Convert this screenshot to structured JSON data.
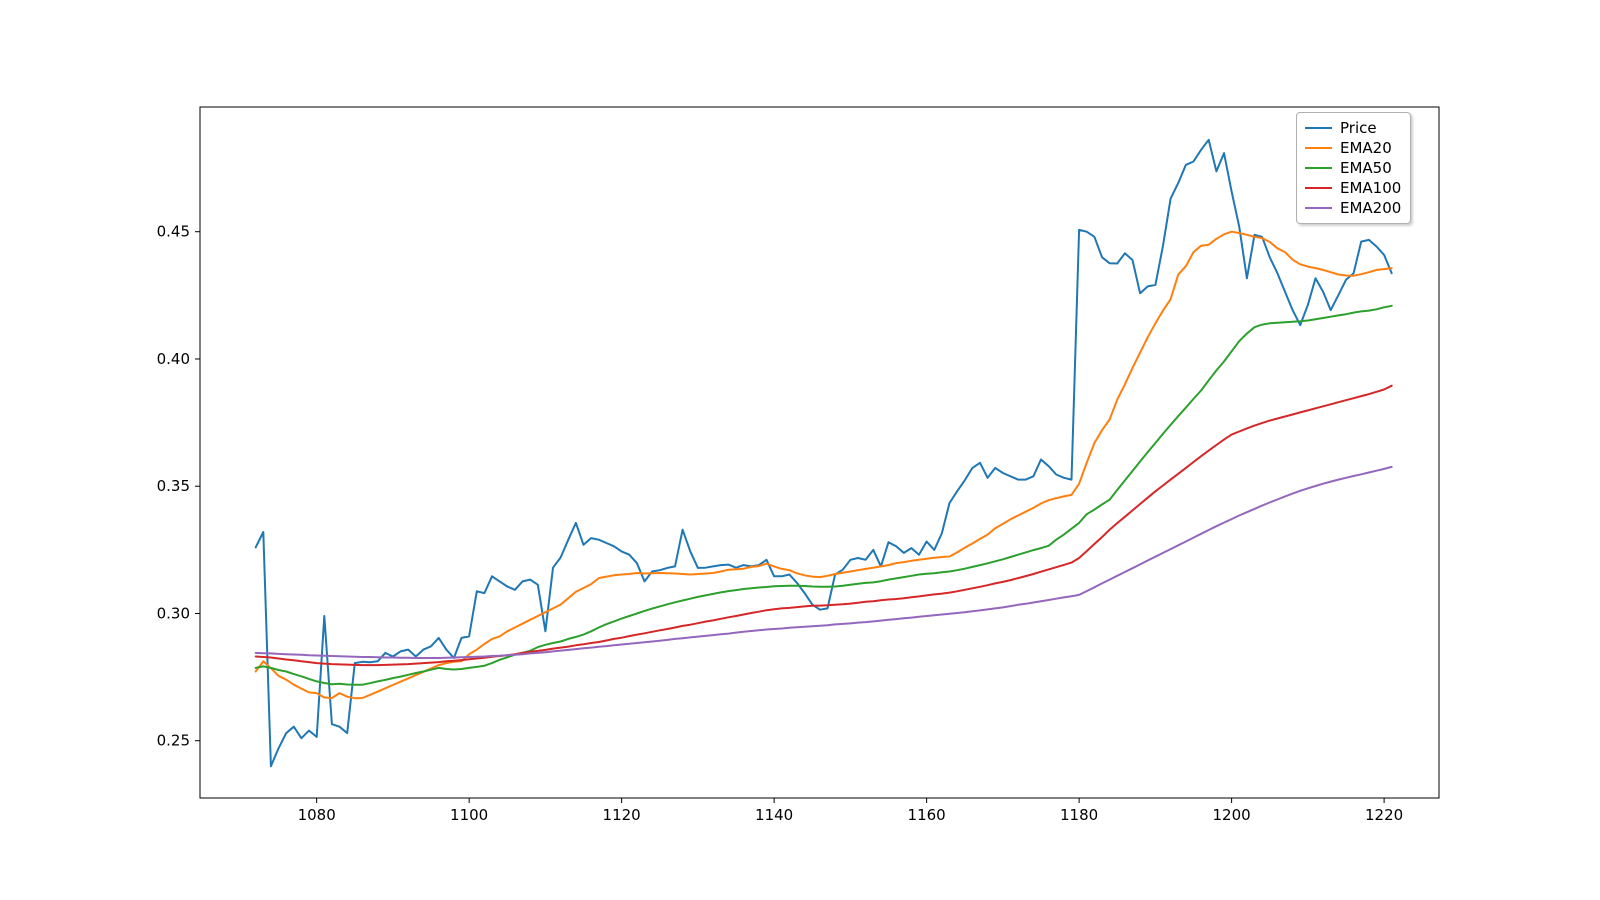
{
  "figure": {
    "background": "#ffffff",
    "frame_color": "#000000"
  },
  "chart_data": {
    "type": "line",
    "title": "",
    "xlabel": "",
    "ylabel": "",
    "grid": false,
    "legend_position": "upper right",
    "xlim": [
      1064.7,
      1227.2
    ],
    "ylim": [
      0.2275,
      0.499
    ],
    "x_ticks": [
      1080,
      1100,
      1120,
      1140,
      1160,
      1180,
      1200,
      1220
    ],
    "y_ticks": [
      0.25,
      0.3,
      0.35,
      0.4,
      0.45
    ],
    "y_tick_labels": [
      "0.25",
      "0.30",
      "0.35",
      "0.40",
      "0.45"
    ],
    "x_start": 1072,
    "x_step": 1,
    "series": [
      {
        "name": "Price",
        "color": "#1f77b4",
        "values": [
          0.326,
          0.332,
          0.24,
          0.247,
          0.253,
          0.2555,
          0.251,
          0.254,
          0.2515,
          0.299,
          0.2565,
          0.2555,
          0.253,
          0.2805,
          0.281,
          0.2808,
          0.2812,
          0.2845,
          0.2831,
          0.2851,
          0.2858,
          0.2831,
          0.2858,
          0.2871,
          0.2904,
          0.2858,
          0.2825,
          0.2904,
          0.291,
          0.3087,
          0.308,
          0.3146,
          0.3126,
          0.3106,
          0.3093,
          0.3126,
          0.3133,
          0.3113,
          0.293,
          0.318,
          0.322,
          0.329,
          0.3356,
          0.327,
          0.3296,
          0.329,
          0.3277,
          0.3264,
          0.3244,
          0.3231,
          0.3198,
          0.3126,
          0.3165,
          0.317,
          0.3179,
          0.3185,
          0.3329,
          0.3244,
          0.3179,
          0.318,
          0.3185,
          0.319,
          0.3192,
          0.318,
          0.319,
          0.3185,
          0.319,
          0.3211,
          0.3146,
          0.3146,
          0.3153,
          0.312,
          0.308,
          0.3035,
          0.3015,
          0.302,
          0.3153,
          0.3172,
          0.3211,
          0.3218,
          0.3211,
          0.325,
          0.3185,
          0.328,
          0.3264,
          0.3238,
          0.3257,
          0.3231,
          0.3283,
          0.325,
          0.3316,
          0.3434,
          0.348,
          0.3523,
          0.3572,
          0.3592,
          0.3533,
          0.3572,
          0.3552,
          0.3539,
          0.3526,
          0.3526,
          0.3539,
          0.3605,
          0.3579,
          0.3546,
          0.3533,
          0.3526,
          0.4507,
          0.45,
          0.448,
          0.44,
          0.4376,
          0.4375,
          0.4415,
          0.4389,
          0.4258,
          0.4285,
          0.4291,
          0.4445,
          0.463,
          0.4691,
          0.4763,
          0.4776,
          0.4822,
          0.4861,
          0.4737,
          0.4809,
          0.4658,
          0.452,
          0.4317,
          0.4488,
          0.448,
          0.44,
          0.4337,
          0.4264,
          0.4192,
          0.4133,
          0.4213,
          0.4317,
          0.4264,
          0.4192,
          0.4251,
          0.4311,
          0.4337,
          0.4461,
          0.4468,
          0.4442,
          0.4409,
          0.4337
        ]
      },
      {
        "name": "EMA20",
        "color": "#ff7f0e",
        "values": [
          0.2772,
          0.2812,
          0.2785,
          0.2755,
          0.274,
          0.272,
          0.2705,
          0.269,
          0.2687,
          0.267,
          0.2668,
          0.2687,
          0.2673,
          0.2667,
          0.2668,
          0.268,
          0.2693,
          0.2706,
          0.2719,
          0.2732,
          0.2745,
          0.2758,
          0.2771,
          0.2784,
          0.2797,
          0.2805,
          0.281,
          0.2812,
          0.284,
          0.2858,
          0.288,
          0.29,
          0.291,
          0.293,
          0.2945,
          0.296,
          0.2975,
          0.299,
          0.3005,
          0.302,
          0.3035,
          0.306,
          0.3085,
          0.31,
          0.3115,
          0.3139,
          0.3145,
          0.315,
          0.3153,
          0.3155,
          0.3159,
          0.3157,
          0.3158,
          0.3159,
          0.3158,
          0.3157,
          0.3155,
          0.3153,
          0.3155,
          0.3157,
          0.3159,
          0.3165,
          0.3172,
          0.3174,
          0.3176,
          0.3183,
          0.3186,
          0.3196,
          0.3185,
          0.3175,
          0.317,
          0.3158,
          0.315,
          0.3145,
          0.3143,
          0.3148,
          0.3155,
          0.316,
          0.3165,
          0.317,
          0.3175,
          0.318,
          0.3185,
          0.319,
          0.3198,
          0.3202,
          0.3207,
          0.3211,
          0.3215,
          0.3219,
          0.3222,
          0.3224,
          0.324,
          0.3258,
          0.3275,
          0.3293,
          0.331,
          0.3335,
          0.3352,
          0.337,
          0.3385,
          0.34,
          0.3415,
          0.3432,
          0.3445,
          0.3453,
          0.346,
          0.3466,
          0.351,
          0.3592,
          0.367,
          0.372,
          0.3762,
          0.384,
          0.39,
          0.3965,
          0.4025,
          0.4085,
          0.414,
          0.419,
          0.4235,
          0.4331,
          0.4365,
          0.442,
          0.4445,
          0.4449,
          0.4472,
          0.449,
          0.45,
          0.4495,
          0.4488,
          0.448,
          0.4475,
          0.446,
          0.4435,
          0.442,
          0.439,
          0.4372,
          0.4363,
          0.4357,
          0.435,
          0.4341,
          0.4332,
          0.4328,
          0.4327,
          0.4333,
          0.4341,
          0.435,
          0.4353,
          0.4357
        ]
      },
      {
        "name": "EMA50",
        "color": "#2ca02c",
        "values": [
          0.2786,
          0.2792,
          0.2786,
          0.2778,
          0.2772,
          0.2762,
          0.2753,
          0.2743,
          0.2733,
          0.2727,
          0.2722,
          0.2724,
          0.2721,
          0.272,
          0.272,
          0.2726,
          0.2733,
          0.2739,
          0.2746,
          0.2752,
          0.2759,
          0.2766,
          0.2772,
          0.2779,
          0.2786,
          0.2782,
          0.278,
          0.2782,
          0.2786,
          0.279,
          0.2795,
          0.2805,
          0.2818,
          0.2828,
          0.2838,
          0.2845,
          0.2853,
          0.2868,
          0.2877,
          0.2884,
          0.289,
          0.29,
          0.2908,
          0.2917,
          0.293,
          0.2945,
          0.2958,
          0.2969,
          0.298,
          0.299,
          0.3,
          0.301,
          0.3019,
          0.3028,
          0.3036,
          0.3044,
          0.3051,
          0.3058,
          0.3065,
          0.3071,
          0.3077,
          0.3083,
          0.3088,
          0.3092,
          0.3096,
          0.3099,
          0.3102,
          0.3104,
          0.3107,
          0.3108,
          0.3109,
          0.3109,
          0.3108,
          0.3106,
          0.3105,
          0.3105,
          0.3106,
          0.3109,
          0.3113,
          0.3117,
          0.312,
          0.3122,
          0.3127,
          0.3133,
          0.3138,
          0.3143,
          0.3148,
          0.3153,
          0.3156,
          0.3158,
          0.3162,
          0.3165,
          0.317,
          0.3176,
          0.3183,
          0.319,
          0.3197,
          0.3205,
          0.3213,
          0.3222,
          0.3231,
          0.324,
          0.3249,
          0.3257,
          0.3266,
          0.329,
          0.331,
          0.3333,
          0.3356,
          0.339,
          0.3408,
          0.3428,
          0.3447,
          0.3485,
          0.3523,
          0.356,
          0.3597,
          0.3634,
          0.367,
          0.3706,
          0.3741,
          0.3775,
          0.3809,
          0.3843,
          0.3876,
          0.3916,
          0.3955,
          0.399,
          0.403,
          0.407,
          0.41,
          0.4125,
          0.4135,
          0.414,
          0.4142,
          0.4144,
          0.4146,
          0.4148,
          0.4151,
          0.4156,
          0.4161,
          0.4166,
          0.4171,
          0.4176,
          0.4182,
          0.4187,
          0.419,
          0.4195,
          0.4203,
          0.4209
        ]
      },
      {
        "name": "EMA100",
        "color": "#d62728",
        "values": [
          0.2831,
          0.2829,
          0.2827,
          0.2823,
          0.2819,
          0.2816,
          0.2812,
          0.2809,
          0.2805,
          0.2803,
          0.2801,
          0.28,
          0.2799,
          0.2798,
          0.2797,
          0.2797,
          0.2797,
          0.2798,
          0.2799,
          0.28,
          0.2801,
          0.2803,
          0.2805,
          0.2807,
          0.2809,
          0.2812,
          0.2814,
          0.2817,
          0.282,
          0.2823,
          0.2826,
          0.283,
          0.2833,
          0.2836,
          0.284,
          0.2845,
          0.2849,
          0.2853,
          0.2857,
          0.2862,
          0.2866,
          0.287,
          0.2875,
          0.2879,
          0.2884,
          0.2888,
          0.2894,
          0.29,
          0.2905,
          0.2911,
          0.2917,
          0.2922,
          0.2928,
          0.2934,
          0.2939,
          0.2945,
          0.2951,
          0.2956,
          0.2962,
          0.2968,
          0.2973,
          0.2979,
          0.2985,
          0.299,
          0.2996,
          0.3002,
          0.3007,
          0.3013,
          0.3017,
          0.302,
          0.3022,
          0.3025,
          0.3028,
          0.303,
          0.3031,
          0.3032,
          0.3034,
          0.3036,
          0.3039,
          0.3042,
          0.3046,
          0.3048,
          0.3052,
          0.3055,
          0.3057,
          0.306,
          0.3064,
          0.3067,
          0.3071,
          0.3075,
          0.3078,
          0.3082,
          0.3087,
          0.3093,
          0.3099,
          0.3105,
          0.3111,
          0.3118,
          0.3124,
          0.3131,
          0.3139,
          0.3147,
          0.3155,
          0.3164,
          0.3173,
          0.3182,
          0.3191,
          0.32,
          0.3218,
          0.3245,
          0.3273,
          0.33,
          0.3329,
          0.3355,
          0.338,
          0.3405,
          0.343,
          0.3455,
          0.348,
          0.3503,
          0.3526,
          0.3549,
          0.3572,
          0.3595,
          0.3618,
          0.364,
          0.3662,
          0.3683,
          0.3703,
          0.3715,
          0.3727,
          0.3738,
          0.3748,
          0.3758,
          0.3766,
          0.3774,
          0.3782,
          0.379,
          0.3798,
          0.3806,
          0.3814,
          0.3822,
          0.383,
          0.3838,
          0.3846,
          0.3854,
          0.3862,
          0.3871,
          0.388,
          0.3895
        ]
      },
      {
        "name": "EMA200",
        "color": "#9467bd",
        "values": [
          0.2845,
          0.2844,
          0.2843,
          0.2841,
          0.284,
          0.2839,
          0.2838,
          0.2836,
          0.2835,
          0.2834,
          0.2833,
          0.2832,
          0.2831,
          0.283,
          0.2829,
          0.2829,
          0.2828,
          0.2827,
          0.2827,
          0.2826,
          0.2826,
          0.2825,
          0.2825,
          0.2825,
          0.2825,
          0.2826,
          0.2827,
          0.2828,
          0.2829,
          0.283,
          0.2831,
          0.2833,
          0.2834,
          0.2836,
          0.2838,
          0.284,
          0.2843,
          0.2845,
          0.2848,
          0.2851,
          0.2854,
          0.2857,
          0.286,
          0.2863,
          0.2866,
          0.2869,
          0.2872,
          0.2875,
          0.2878,
          0.2881,
          0.2884,
          0.2887,
          0.289,
          0.2893,
          0.2896,
          0.29,
          0.2903,
          0.2906,
          0.2909,
          0.2912,
          0.2915,
          0.2918,
          0.2921,
          0.2925,
          0.2928,
          0.2931,
          0.2934,
          0.2937,
          0.2939,
          0.2941,
          0.2944,
          0.2946,
          0.2948,
          0.295,
          0.2952,
          0.2954,
          0.2957,
          0.2959,
          0.2961,
          0.2964,
          0.2966,
          0.2969,
          0.2972,
          0.2975,
          0.2978,
          0.2981,
          0.2984,
          0.2987,
          0.299,
          0.2993,
          0.2996,
          0.2999,
          0.3002,
          0.3005,
          0.3009,
          0.3012,
          0.3016,
          0.302,
          0.3024,
          0.3029,
          0.3034,
          0.3038,
          0.3043,
          0.3048,
          0.3053,
          0.3058,
          0.3063,
          0.3068,
          0.3073,
          0.3088,
          0.3103,
          0.3118,
          0.3133,
          0.3148,
          0.3163,
          0.3178,
          0.3193,
          0.3208,
          0.3223,
          0.3238,
          0.3253,
          0.3268,
          0.3283,
          0.3298,
          0.3313,
          0.3328,
          0.3343,
          0.3357,
          0.3371,
          0.3385,
          0.3398,
          0.3411,
          0.3424,
          0.3436,
          0.3448,
          0.346,
          0.3471,
          0.3482,
          0.3492,
          0.3501,
          0.351,
          0.3518,
          0.3526,
          0.3533,
          0.354,
          0.3547,
          0.3554,
          0.3561,
          0.3568,
          0.3576
        ]
      }
    ]
  }
}
